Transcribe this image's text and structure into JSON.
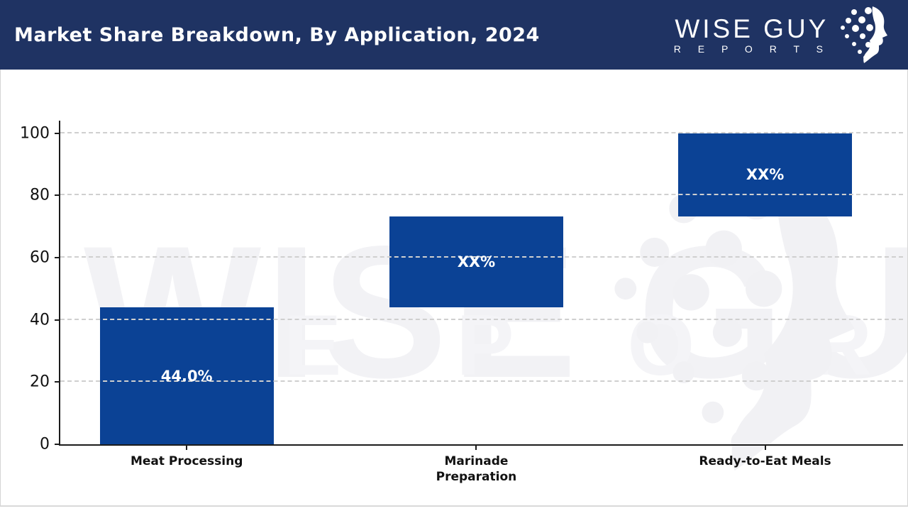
{
  "header": {
    "title": "Market Share Breakdown, By Application, 2024",
    "logo": {
      "line1": "WISE GUY",
      "line2": "R E P O R T S"
    }
  },
  "watermark": {
    "line1": "WISE GUY",
    "line2": "R E P O R T S"
  },
  "colors": {
    "header_bg": "#1f3363",
    "bar": "#0b4295",
    "bar_label": "#ffffff",
    "grid": "#cfcfcf",
    "axis": "#1c1c1c",
    "watermark": "#f2f2f5"
  },
  "chart_data": {
    "type": "bar",
    "subtype": "waterfall",
    "title": "Market Share Breakdown, By Application, 2024",
    "categories": [
      "Meat Processing",
      "Marinade\nPreparation",
      "Ready-to-Eat Meals"
    ],
    "segments": [
      {
        "category": "Meat Processing",
        "start": 0,
        "end": 44,
        "label": "44.0%"
      },
      {
        "category": "Marinade Preparation",
        "start": 44,
        "end": 73.3,
        "label": "XX%"
      },
      {
        "category": "Ready-to-Eat Meals",
        "start": 73.3,
        "end": 100,
        "label": "XX%"
      }
    ],
    "yticks": [
      0,
      20,
      40,
      60,
      80,
      100
    ],
    "ylim": [
      0,
      104
    ],
    "xlabel": "",
    "ylabel": "",
    "grid": "horizontal-dashed",
    "legend": "none"
  }
}
